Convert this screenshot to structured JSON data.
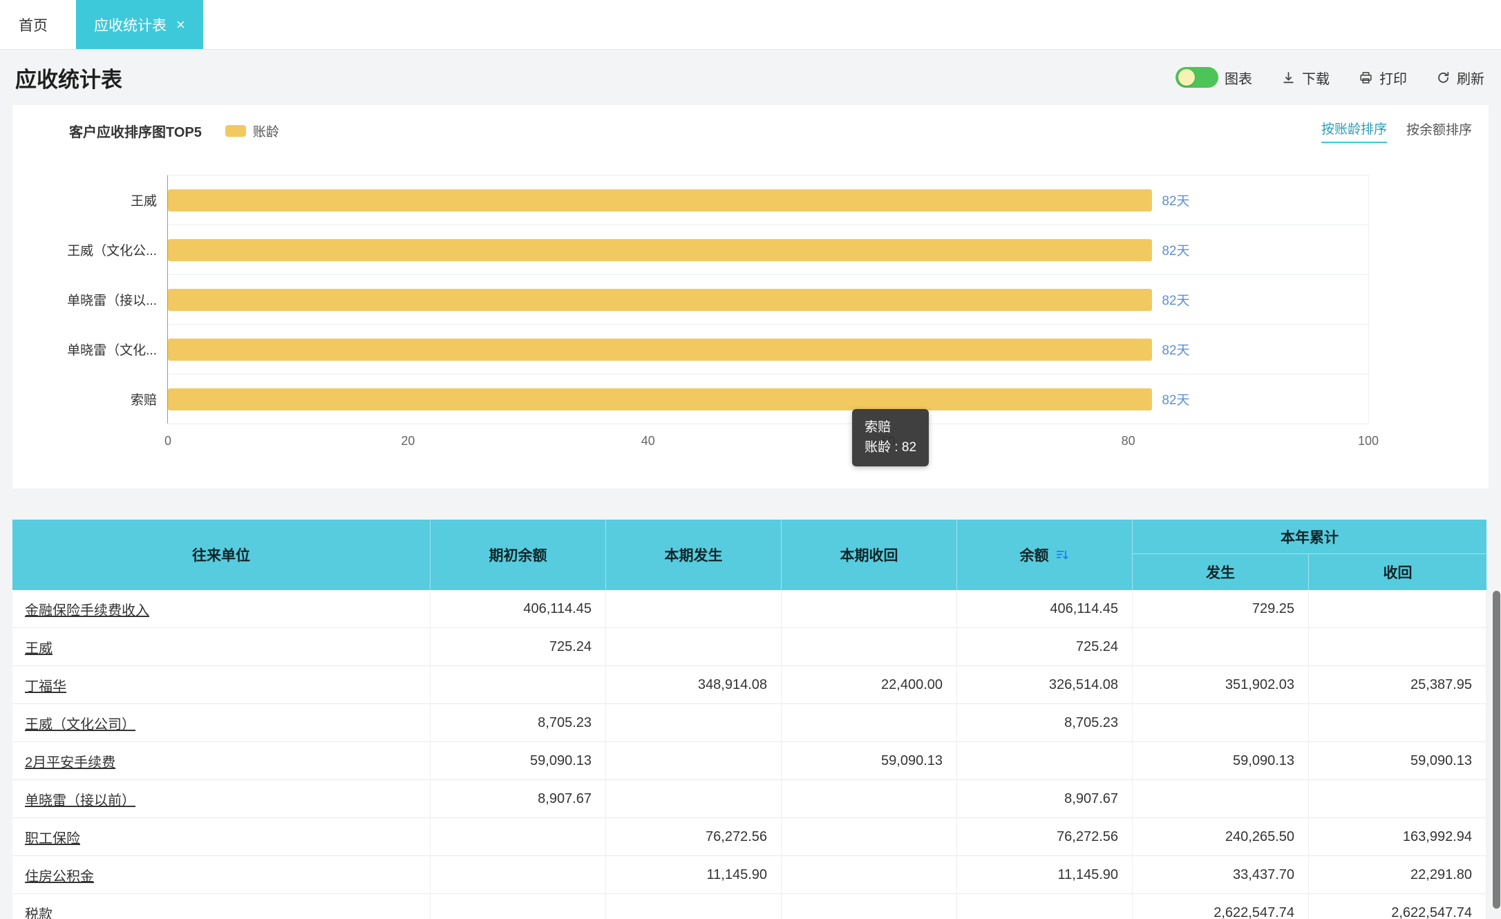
{
  "colors": {
    "accent_teal": "#3ec9db",
    "table_header_teal": "#57ccdf",
    "bar_gold": "#f2c960",
    "toggle_green": "#4cc457",
    "bar_label_blue": "#5b8fd9",
    "sort_icon_blue": "#1e80ff"
  },
  "tabs": {
    "home": "首页",
    "active": "应收统计表",
    "close": "×"
  },
  "header": {
    "title": "应收统计表",
    "toggle_label": "图表",
    "download": "下载",
    "print": "打印",
    "refresh": "刷新"
  },
  "chart": {
    "sort_by_age": "按账龄排序",
    "sort_by_balance": "按余额排序",
    "tooltip_title": "索赔",
    "tooltip_value": "账龄 : 82"
  },
  "chart_data": {
    "type": "bar",
    "orientation": "horizontal",
    "title": "客户应收排序图TOP5",
    "legend": [
      "账龄"
    ],
    "legend_position": "top",
    "categories": [
      "王威",
      "王威（文化公...",
      "单晓雷（接以...",
      "单晓雷（文化...",
      "索赔"
    ],
    "series": [
      {
        "name": "账龄",
        "values": [
          82,
          82,
          82,
          82,
          82
        ]
      }
    ],
    "unit": "天",
    "xlim": [
      0,
      100
    ],
    "x_ticks": [
      "0",
      "20",
      "40",
      "60",
      "80",
      "100"
    ],
    "grid": true,
    "tooltip": {
      "category": "索赔",
      "series": "账龄",
      "value": 82
    }
  },
  "table": {
    "col_unit": "往来单位",
    "col_opening": "期初余额",
    "col_current_incurred": "本期发生",
    "col_current_received": "本期收回",
    "col_balance": "余额",
    "col_ytd": "本年累计",
    "col_ytd_incurred": "发生",
    "col_ytd_received": "收回",
    "rows": [
      {
        "name": "金融保险手续费收入",
        "opening": "406,114.45",
        "incurred": "",
        "received": "",
        "balance": "406,114.45",
        "ytd_incurred": "729.25",
        "ytd_received": ""
      },
      {
        "name": "王威",
        "opening": "725.24",
        "incurred": "",
        "received": "",
        "balance": "725.24",
        "ytd_incurred": "",
        "ytd_received": ""
      },
      {
        "name": "丁福华",
        "opening": "",
        "incurred": "348,914.08",
        "received": "22,400.00",
        "balance": "326,514.08",
        "ytd_incurred": "351,902.03",
        "ytd_received": "25,387.95"
      },
      {
        "name": "王威（文化公司）",
        "opening": "8,705.23",
        "incurred": "",
        "received": "",
        "balance": "8,705.23",
        "ytd_incurred": "",
        "ytd_received": ""
      },
      {
        "name": "2月平安手续费",
        "opening": "59,090.13",
        "incurred": "",
        "received": "59,090.13",
        "balance": "",
        "ytd_incurred": "59,090.13",
        "ytd_received": "59,090.13"
      },
      {
        "name": "单晓雷（接以前）",
        "opening": "8,907.67",
        "incurred": "",
        "received": "",
        "balance": "8,907.67",
        "ytd_incurred": "",
        "ytd_received": ""
      },
      {
        "name": "职工保险",
        "opening": "",
        "incurred": "76,272.56",
        "received": "",
        "balance": "76,272.56",
        "ytd_incurred": "240,265.50",
        "ytd_received": "163,992.94"
      },
      {
        "name": "住房公积金",
        "opening": "",
        "incurred": "11,145.90",
        "received": "",
        "balance": "11,145.90",
        "ytd_incurred": "33,437.70",
        "ytd_received": "22,291.80"
      },
      {
        "name": "税款",
        "opening": "",
        "incurred": "",
        "received": "",
        "balance": "",
        "ytd_incurred": "2,622,547.74",
        "ytd_received": "2,622,547.74"
      }
    ]
  }
}
